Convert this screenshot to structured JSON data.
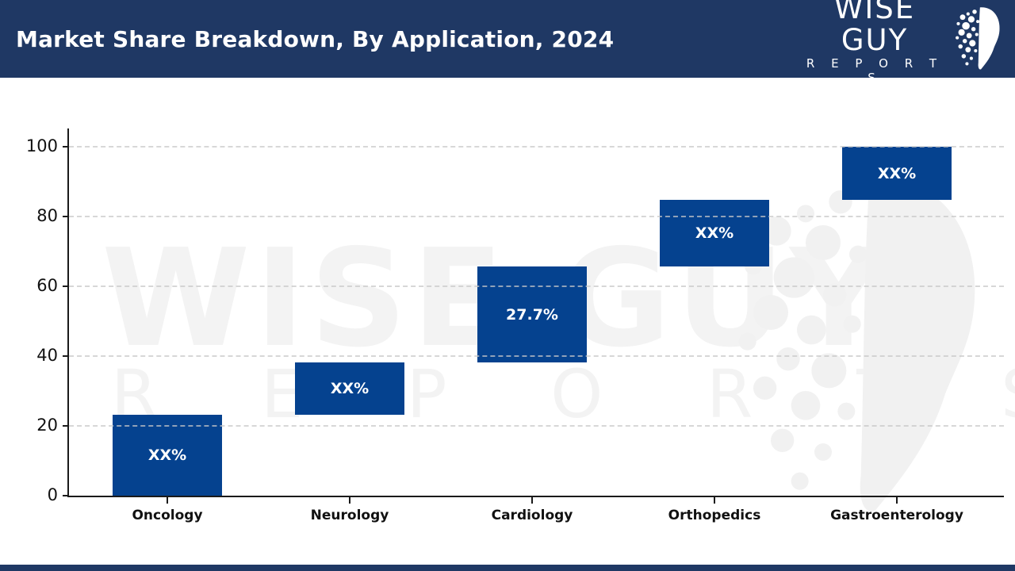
{
  "header": {
    "title": "Market Share Breakdown, By Application, 2024"
  },
  "logo": {
    "line1": "WISE GUY",
    "line2": "R E P O R T S"
  },
  "watermark": {
    "line1": "WISE GUY",
    "line2": "R E P O R T S"
  },
  "colors": {
    "header_bg": "#1f3864",
    "footer_bg": "#1f3864",
    "bar": "#05428f",
    "grid": "#c8c8c8",
    "axis": "#1a1a1a",
    "bar_label": "#ffffff",
    "watermark": "#f3f3f3"
  },
  "chart_data": {
    "type": "bar",
    "subtype": "waterfall",
    "title": "Market Share Breakdown, By Application, 2024",
    "categories": [
      "Oncology",
      "Neurology",
      "Cardiology",
      "Orthopedics",
      "Gastroenterology"
    ],
    "segments": [
      {
        "category": "Oncology",
        "start": 0,
        "end": 23.3,
        "label": "XX%"
      },
      {
        "category": "Neurology",
        "start": 23.2,
        "end": 38.1,
        "label": "XX%"
      },
      {
        "category": "Cardiology",
        "start": 38.1,
        "end": 65.8,
        "label": "27.7%"
      },
      {
        "category": "Orthopedics",
        "start": 65.8,
        "end": 84.8,
        "label": "XX%"
      },
      {
        "category": "Gastroenterology",
        "start": 84.8,
        "end": 100,
        "label": "XX%"
      }
    ],
    "yticks": [
      0,
      20,
      40,
      60,
      80,
      100
    ],
    "ylim": [
      0,
      105.5
    ],
    "xlabel": "",
    "ylabel": "",
    "grid": true,
    "grid_style": "dashed",
    "legend": false
  }
}
